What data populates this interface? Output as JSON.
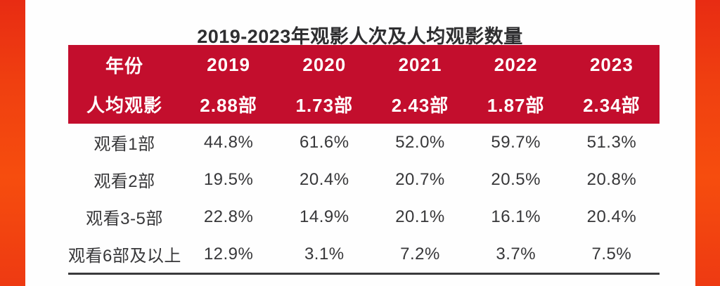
{
  "title": "2019-2023年观影人次及人均观影数量",
  "colors": {
    "header_bg": "#c30e2d",
    "header_text": "#ffffff",
    "side_strip_orange": "#f1400f",
    "title_text": "#2e2e30",
    "body_text": "#373739",
    "bottom_rule": "#3a3a3c"
  },
  "chart_data": {
    "type": "table",
    "title": "2019-2023年观影人次及人均观影数量",
    "columns": [
      "年份",
      "2019",
      "2020",
      "2021",
      "2022",
      "2023"
    ],
    "header_rows": [
      {
        "label": "人均观影",
        "values": [
          "2.88部",
          "1.73部",
          "2.43部",
          "1.87部",
          "2.34部"
        ]
      }
    ],
    "rows": [
      {
        "label": "观看1部",
        "values": [
          "44.8%",
          "61.6%",
          "52.0%",
          "59.7%",
          "51.3%"
        ]
      },
      {
        "label": "观看2部",
        "values": [
          "19.5%",
          "20.4%",
          "20.7%",
          "20.5%",
          "20.8%"
        ]
      },
      {
        "label": "观看3-5部",
        "values": [
          "22.8%",
          "14.9%",
          "20.1%",
          "16.1%",
          "20.4%"
        ]
      },
      {
        "label": "观看6部及以上",
        "values": [
          "12.9%",
          "3.1%",
          "7.2%",
          "3.7%",
          "7.5%"
        ]
      }
    ],
    "layout": {
      "header_row_count": 2,
      "grid": "off",
      "note": "crimson header block, white body, dark bottom rule"
    }
  }
}
